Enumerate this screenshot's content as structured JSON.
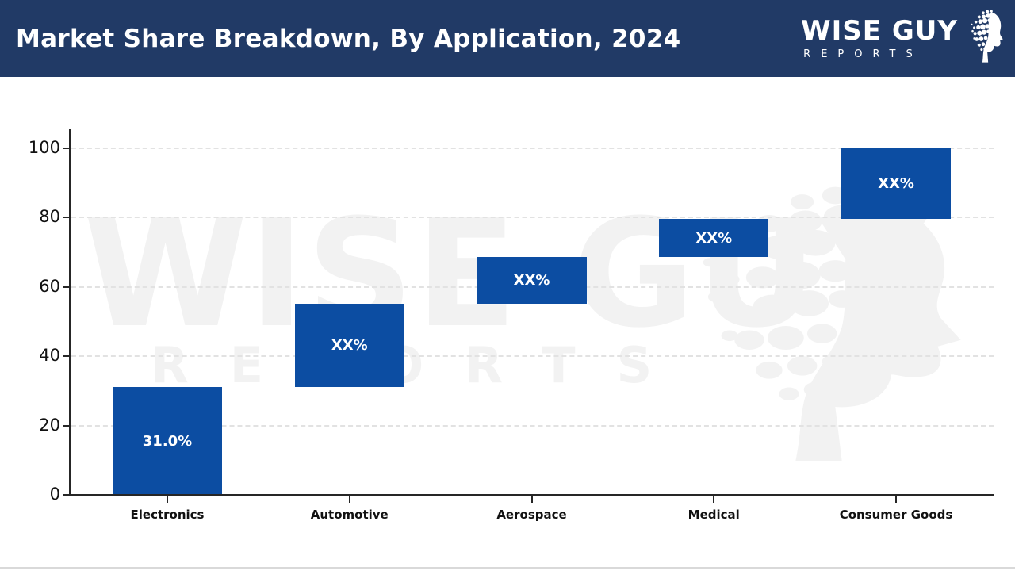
{
  "header": {
    "title": "Market Share Breakdown, By Application, 2024",
    "logo": {
      "primary": "WISE GUY",
      "secondary": "REPORTS"
    }
  },
  "watermark": {
    "primary": "WISE GUY",
    "secondary": "REPORTS"
  },
  "chart_data": {
    "type": "bar",
    "variant": "waterfall",
    "title": "Market Share Breakdown, By Application, 2024",
    "categories": [
      "Electronics",
      "Automotive",
      "Aerospace",
      "Medical",
      "Consumer Goods"
    ],
    "segments": [
      {
        "category": "Electronics",
        "start": 0,
        "end": 31,
        "value": 31.0,
        "label": "31.0%"
      },
      {
        "category": "Automotive",
        "start": 31,
        "end": 55,
        "value": 24.0,
        "label": "XX%"
      },
      {
        "category": "Aerospace",
        "start": 55,
        "end": 68.5,
        "value": 13.5,
        "label": "XX%"
      },
      {
        "category": "Medical",
        "start": 68.5,
        "end": 79.5,
        "value": 11.0,
        "label": "XX%"
      },
      {
        "category": "Consumer Goods",
        "start": 79.5,
        "end": 100,
        "value": 20.5,
        "label": "XX%"
      }
    ],
    "xlabel": "",
    "ylabel": "",
    "yticks": [
      0,
      20,
      40,
      60,
      80,
      100
    ],
    "ylim": [
      0,
      105
    ],
    "grid": "horizontal-dashed",
    "legend": "none",
    "bar_color": "#0c4da2",
    "bar_label_color": "#ffffff"
  },
  "colors": {
    "header_bg": "#213a66",
    "bar": "#0c4da2",
    "watermark": "#f2f2f2",
    "gridline": "#e2e2e2",
    "axis": "#262626",
    "tick_text": "#111111",
    "footer_line": "#d9d9d9"
  }
}
